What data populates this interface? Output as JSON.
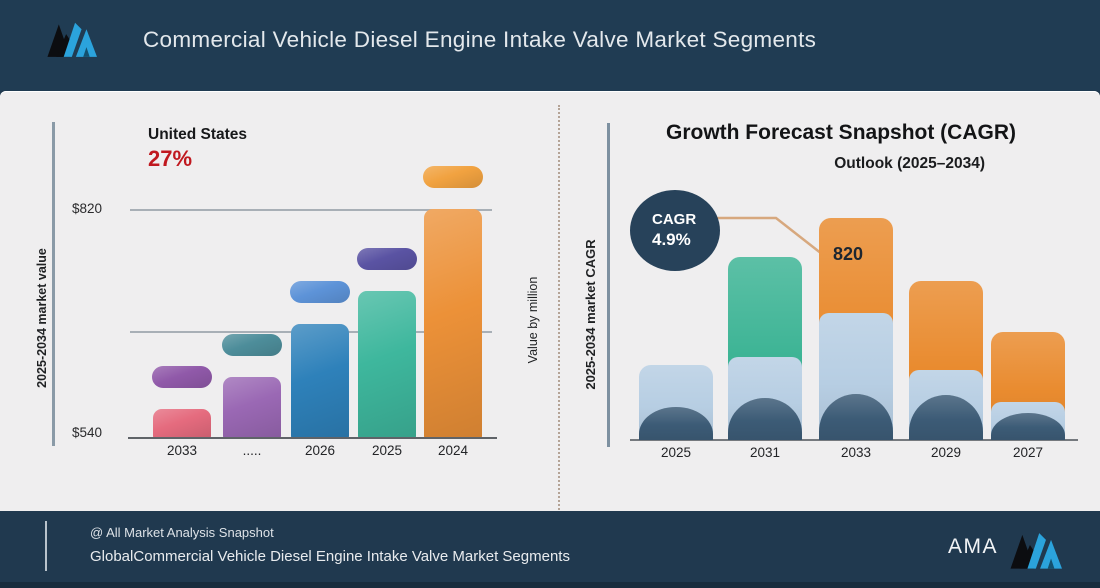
{
  "header": {
    "title": "Commercial Vehicle Diesel Engine Intake Valve Market Segments",
    "logo": "ama-mountain-logo"
  },
  "footer": {
    "line1": "@ All Market Analysis Snapshot",
    "line2": "GlobalCommercial Vehicle Diesel Engine Intake Valve Market Segments",
    "brand": "AMA",
    "logo": "ama-mountain-logo"
  },
  "colors": {
    "navy_bg": "#203c53",
    "card_bg": "#efeeef",
    "accent_red": "#c0181f",
    "circle_navy": "#27425a",
    "connector_tan": "#d7a87e",
    "left_bars": [
      {
        "bar": "#e56b7e",
        "cap": "#9059a9"
      },
      {
        "bar": "#9a68b4",
        "cap": "#4d8d9a"
      },
      {
        "bar": "#2e81ba",
        "cap": "#5d93d8"
      },
      {
        "bar": "#3eb79d",
        "cap": "#5a53a3"
      },
      {
        "bar": "#ec9138",
        "cap": "#f1a240"
      }
    ],
    "right_segments": {
      "light": "#b7cee3",
      "navy": "#3c5b76",
      "teal": "#3db495",
      "orange": "#e98b2f"
    }
  },
  "chart_data": [
    {
      "type": "bar",
      "title": "United States",
      "highlight_value": "27%",
      "ylabel": "2025-2034 market value",
      "ylabel_right": "Value by million",
      "ylim": [
        540,
        830
      ],
      "y_ticks": [
        {
          "label": "$820",
          "value": 820
        },
        {
          "label": "$540",
          "value": 540
        }
      ],
      "grid": "2 horizontal gridlines ($820 level and unlabeled mid line)",
      "legend": "none",
      "categories": [
        "2033",
        ".....",
        "2026",
        "2025",
        "2024"
      ],
      "values": [
        575,
        615,
        680,
        720,
        820
      ],
      "note": "values estimated from $540-$820 axis; each bar has a floating rounded cap above it"
    },
    {
      "type": "bar",
      "title": "Growth Forecast Snapshot (CAGR)",
      "subtitle": "Outlook (2025–2034)",
      "ylabel": "2025-2034 market CAGR",
      "cagr_badge": {
        "label": "CAGR",
        "value": "4.9%"
      },
      "annotation": {
        "text": "820",
        "category": "2033"
      },
      "categories": [
        "2025",
        "2031",
        "2033",
        "2029",
        "2027"
      ],
      "totals": [
        277,
        675,
        820,
        587,
        399
      ],
      "stacked_segments_top_to_bottom": [
        [
          {
            "color": "light",
            "value": 155
          },
          {
            "color": "navy",
            "value": 122
          }
        ],
        [
          {
            "color": "teal",
            "value": 369
          },
          {
            "color": "light",
            "value": 151
          },
          {
            "color": "navy",
            "value": 155
          }
        ],
        [
          {
            "color": "orange",
            "value": 351
          },
          {
            "color": "light",
            "value": 299
          },
          {
            "color": "navy",
            "value": 170
          }
        ],
        [
          {
            "color": "orange",
            "value": 329
          },
          {
            "color": "light",
            "value": 92
          },
          {
            "color": "navy",
            "value": 166
          }
        ],
        [
          {
            "color": "orange",
            "value": 258
          },
          {
            "color": "light",
            "value": 41
          },
          {
            "color": "navy",
            "value": 100
          }
        ]
      ],
      "note": "only 2033 bar labeled (820); other totals estimated proportionally",
      "legend": "none"
    }
  ]
}
